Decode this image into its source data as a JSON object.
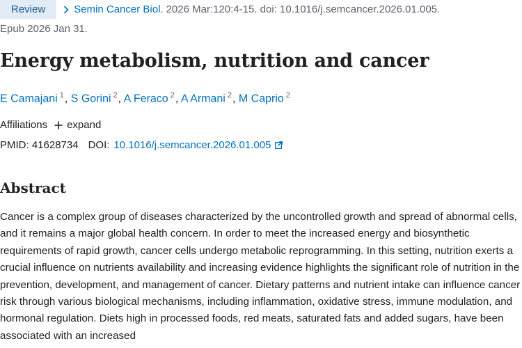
{
  "citation": {
    "badge": "Review",
    "journal": "Semin Cancer Biol.",
    "details": "2026 Mar:120:4-15. doi: 10.1016/j.semcancer.2026.01.005.",
    "epub": "Epub 2026 Jan 31."
  },
  "article": {
    "title": "Energy metabolism, nutrition and cancer"
  },
  "authors": [
    {
      "name": "E Camajani",
      "aff": "1"
    },
    {
      "name": "S Gorini",
      "aff": "2"
    },
    {
      "name": "A Feraco",
      "aff": "2"
    },
    {
      "name": "A Armani",
      "aff": "2"
    },
    {
      "name": "M Caprio",
      "aff": "2"
    }
  ],
  "affiliations": {
    "label": "Affiliations",
    "expand_label": "expand"
  },
  "identifiers": {
    "pmid": "PMID: 41628734",
    "doi_label": "DOI:",
    "doi_value": "10.1016/j.semcancer.2026.01.005"
  },
  "abstract": {
    "heading": "Abstract",
    "text": "Cancer is a complex group of diseases characterized by the uncontrolled growth and spread of abnormal cells, and it remains a major global health concern. In order to meet the increased energy and biosynthetic requirements of rapid growth, cancer cells undergo metabolic reprogramming. In this setting, nutrition exerts a crucial influence on nutrients availability and increasing evidence highlights the significant role of nutrition in the prevention, development, and management of cancer. Dietary patterns and nutrient intake can influence cancer risk through various biological mechanisms, including inflammation, oxidative stress, immune modulation, and hormonal regulation. Diets high in processed foods, red meats, saturated fats and added sugars, have been associated with an increased"
  },
  "colors": {
    "link": "#0071bc",
    "badge_bg": "#e1ecf7",
    "badge_text": "#20558a",
    "muted": "#5b616b"
  },
  "icons": {
    "journal": "chevron-right-icon",
    "expand": "plus-icon",
    "doi": "external-link-icon"
  }
}
